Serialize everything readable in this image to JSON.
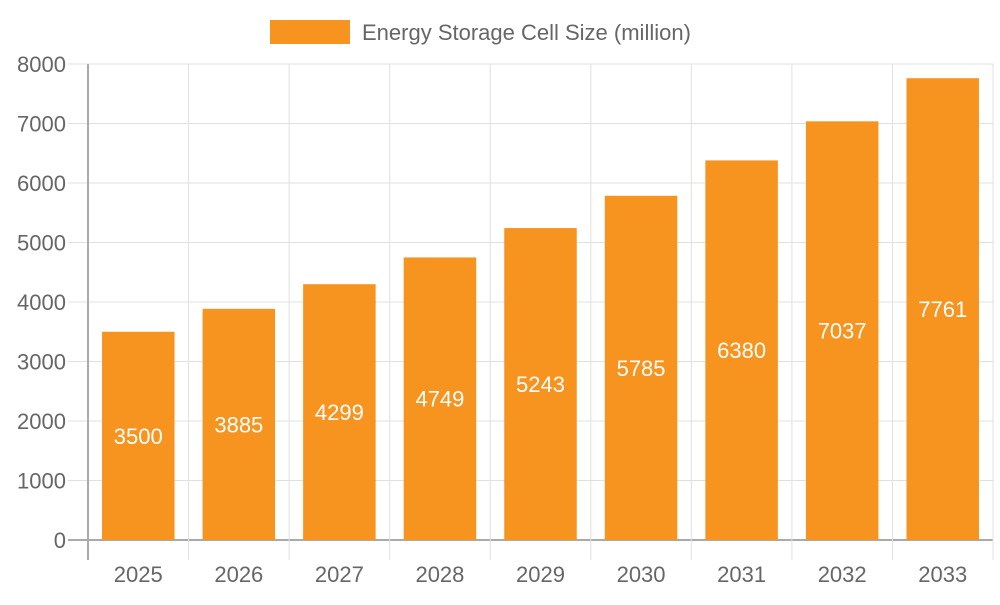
{
  "chart_data": {
    "type": "bar",
    "title": "",
    "xlabel": "",
    "ylabel": "",
    "categories": [
      "2025",
      "2026",
      "2027",
      "2028",
      "2029",
      "2030",
      "2031",
      "2032",
      "2033"
    ],
    "series": [
      {
        "name": "Energy Storage Cell Size (million)",
        "values": [
          3500,
          3885,
          4299,
          4749,
          5243,
          5785,
          6380,
          7037,
          7761
        ],
        "color": "#f7941f"
      }
    ],
    "ylim": [
      0,
      8000
    ],
    "yticks": [
      0,
      1000,
      2000,
      3000,
      4000,
      5000,
      6000,
      7000,
      8000
    ],
    "grid": true,
    "legend": "top-center",
    "data_labels": "inside-center",
    "colors": {
      "bar": "#f7941f",
      "grid": "#e0e0e0",
      "axis": "#aaaaaa",
      "text": "#666666",
      "label": "#ffffff"
    }
  }
}
